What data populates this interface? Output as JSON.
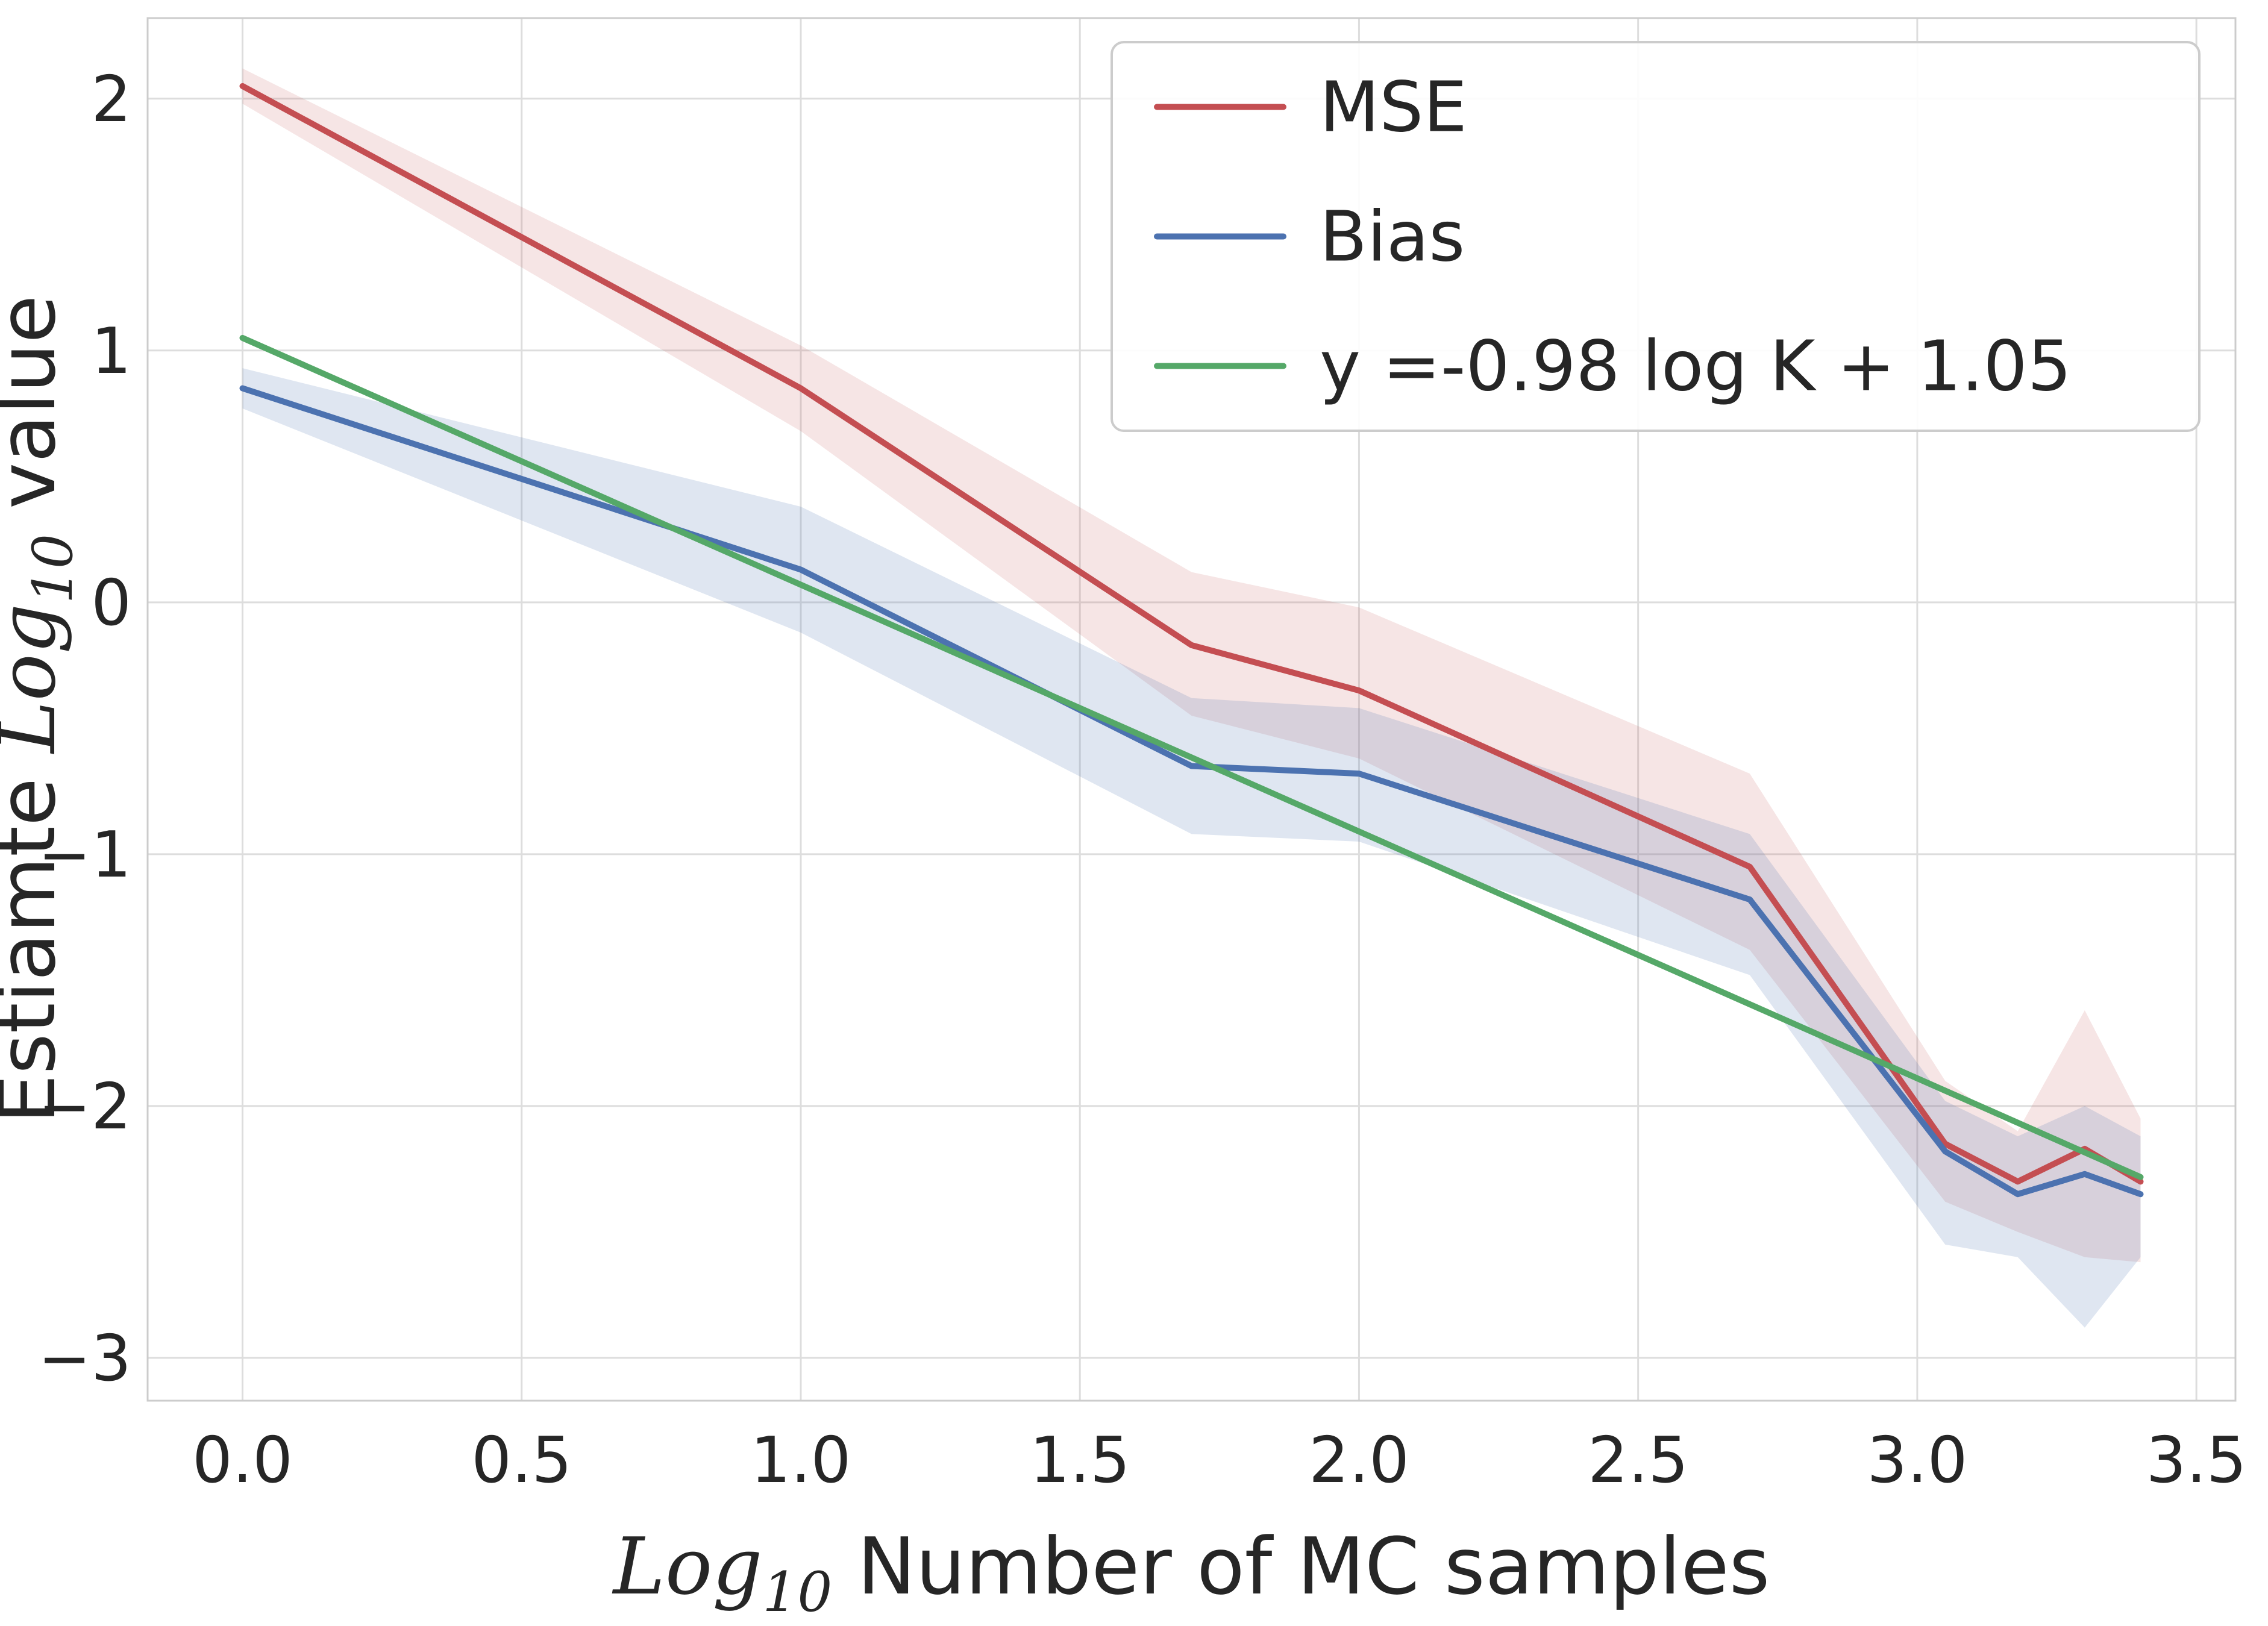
{
  "chart_data": {
    "type": "line",
    "title": "",
    "xlabel": {
      "math_italic": "Log",
      "math_sub": "10",
      "text_after": " Number of MC samples"
    },
    "ylabel": {
      "text_before": "Estiamte ",
      "math_italic": "Log",
      "math_sub": "10",
      "text_after": " value"
    },
    "xlim": [
      -0.17,
      3.57
    ],
    "ylim": [
      -3.17,
      2.32
    ],
    "xtick_labels": [
      "0.0",
      "0.5",
      "1.0",
      "1.5",
      "2.0",
      "2.5",
      "3.0",
      "3.5"
    ],
    "xtick_values": [
      0,
      0.5,
      1,
      1.5,
      2,
      2.5,
      3,
      3.5
    ],
    "ytick_labels": [
      "-3",
      "-2",
      "-1",
      "0",
      "1",
      "2"
    ],
    "ytick_values": [
      -3,
      -2,
      -1,
      0,
      1,
      2
    ],
    "grid": true,
    "legend_position": "upper-right",
    "axis_text_color": "#262626",
    "grid_color": "#dddddd",
    "spine_color": "#cccccc",
    "background_color": "#ffffff",
    "series": [
      {
        "name": "MSE",
        "color": "#c44e52",
        "x": [
          0.0,
          1.0,
          1.7,
          2.0,
          2.7,
          3.05,
          3.18,
          3.3,
          3.4
        ],
        "y": [
          2.05,
          0.85,
          -0.17,
          -0.35,
          -1.05,
          -2.15,
          -2.3,
          -2.17,
          -2.3
        ],
        "band_upper": [
          2.12,
          1.02,
          0.12,
          -0.02,
          -0.68,
          -1.9,
          -2.1,
          -1.62,
          -2.05
        ],
        "band_lower": [
          1.98,
          0.68,
          -0.45,
          -0.62,
          -1.38,
          -2.38,
          -2.5,
          -2.6,
          -2.62
        ],
        "band_opacity": 0.15
      },
      {
        "name": "Bias",
        "color": "#4c72b0",
        "x": [
          0.0,
          1.0,
          1.7,
          2.0,
          2.7,
          3.05,
          3.18,
          3.3,
          3.4
        ],
        "y": [
          0.85,
          0.13,
          -0.65,
          -0.68,
          -1.18,
          -2.18,
          -2.35,
          -2.27,
          -2.35
        ],
        "band_upper": [
          0.93,
          0.38,
          -0.38,
          -0.42,
          -0.92,
          -1.98,
          -2.12,
          -2.0,
          -2.12
        ],
        "band_lower": [
          0.77,
          -0.12,
          -0.92,
          -0.95,
          -1.48,
          -2.55,
          -2.6,
          -2.88,
          -2.6
        ],
        "band_opacity": 0.18
      },
      {
        "name": "y =-0.98 log K + 1.05",
        "color": "#55a868",
        "x": [
          0.0,
          3.4
        ],
        "y": [
          1.05,
          -2.282
        ]
      }
    ],
    "legend": [
      "MSE",
      "Bias",
      "y =-0.98 log K + 1.05"
    ]
  }
}
